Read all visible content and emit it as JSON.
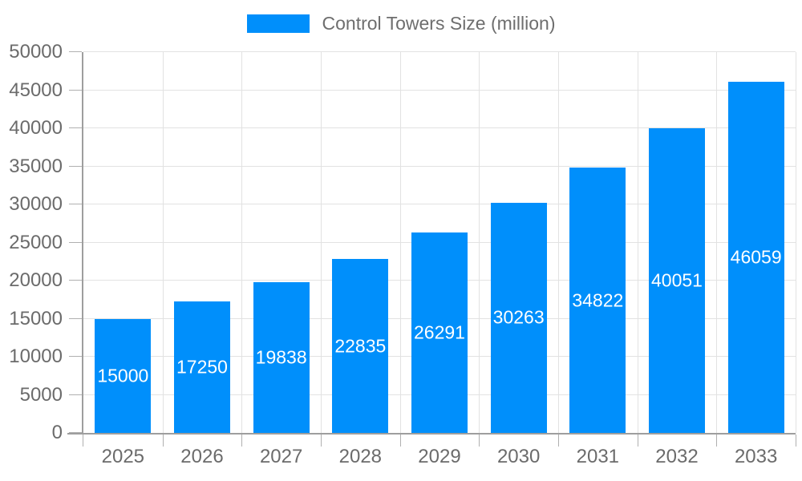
{
  "legend": {
    "label": "Control Towers Size (million)",
    "swatch_color": "#008FFB"
  },
  "chart_data": {
    "type": "bar",
    "title": "Control Towers Size (million)",
    "categories": [
      "2025",
      "2026",
      "2027",
      "2028",
      "2029",
      "2030",
      "2031",
      "2032",
      "2033"
    ],
    "series": [
      {
        "name": "Control Towers Size (million)",
        "values": [
          15000,
          17250,
          19838,
          22835,
          26291,
          30263,
          34822,
          40051,
          46059
        ]
      }
    ],
    "y_ticks": [
      0,
      5000,
      10000,
      15000,
      20000,
      25000,
      30000,
      35000,
      40000,
      45000,
      50000
    ],
    "ylim": [
      0,
      50000
    ],
    "xlabel": "",
    "ylabel": "",
    "grid": true,
    "legend_position": "top",
    "bar_color": "#008FFB",
    "value_label_color": "#ffffff",
    "axis_text_color": "#6b6b6b",
    "gridline_color": "#e2e2e2",
    "axis_line_color": "#9e9e9e"
  }
}
